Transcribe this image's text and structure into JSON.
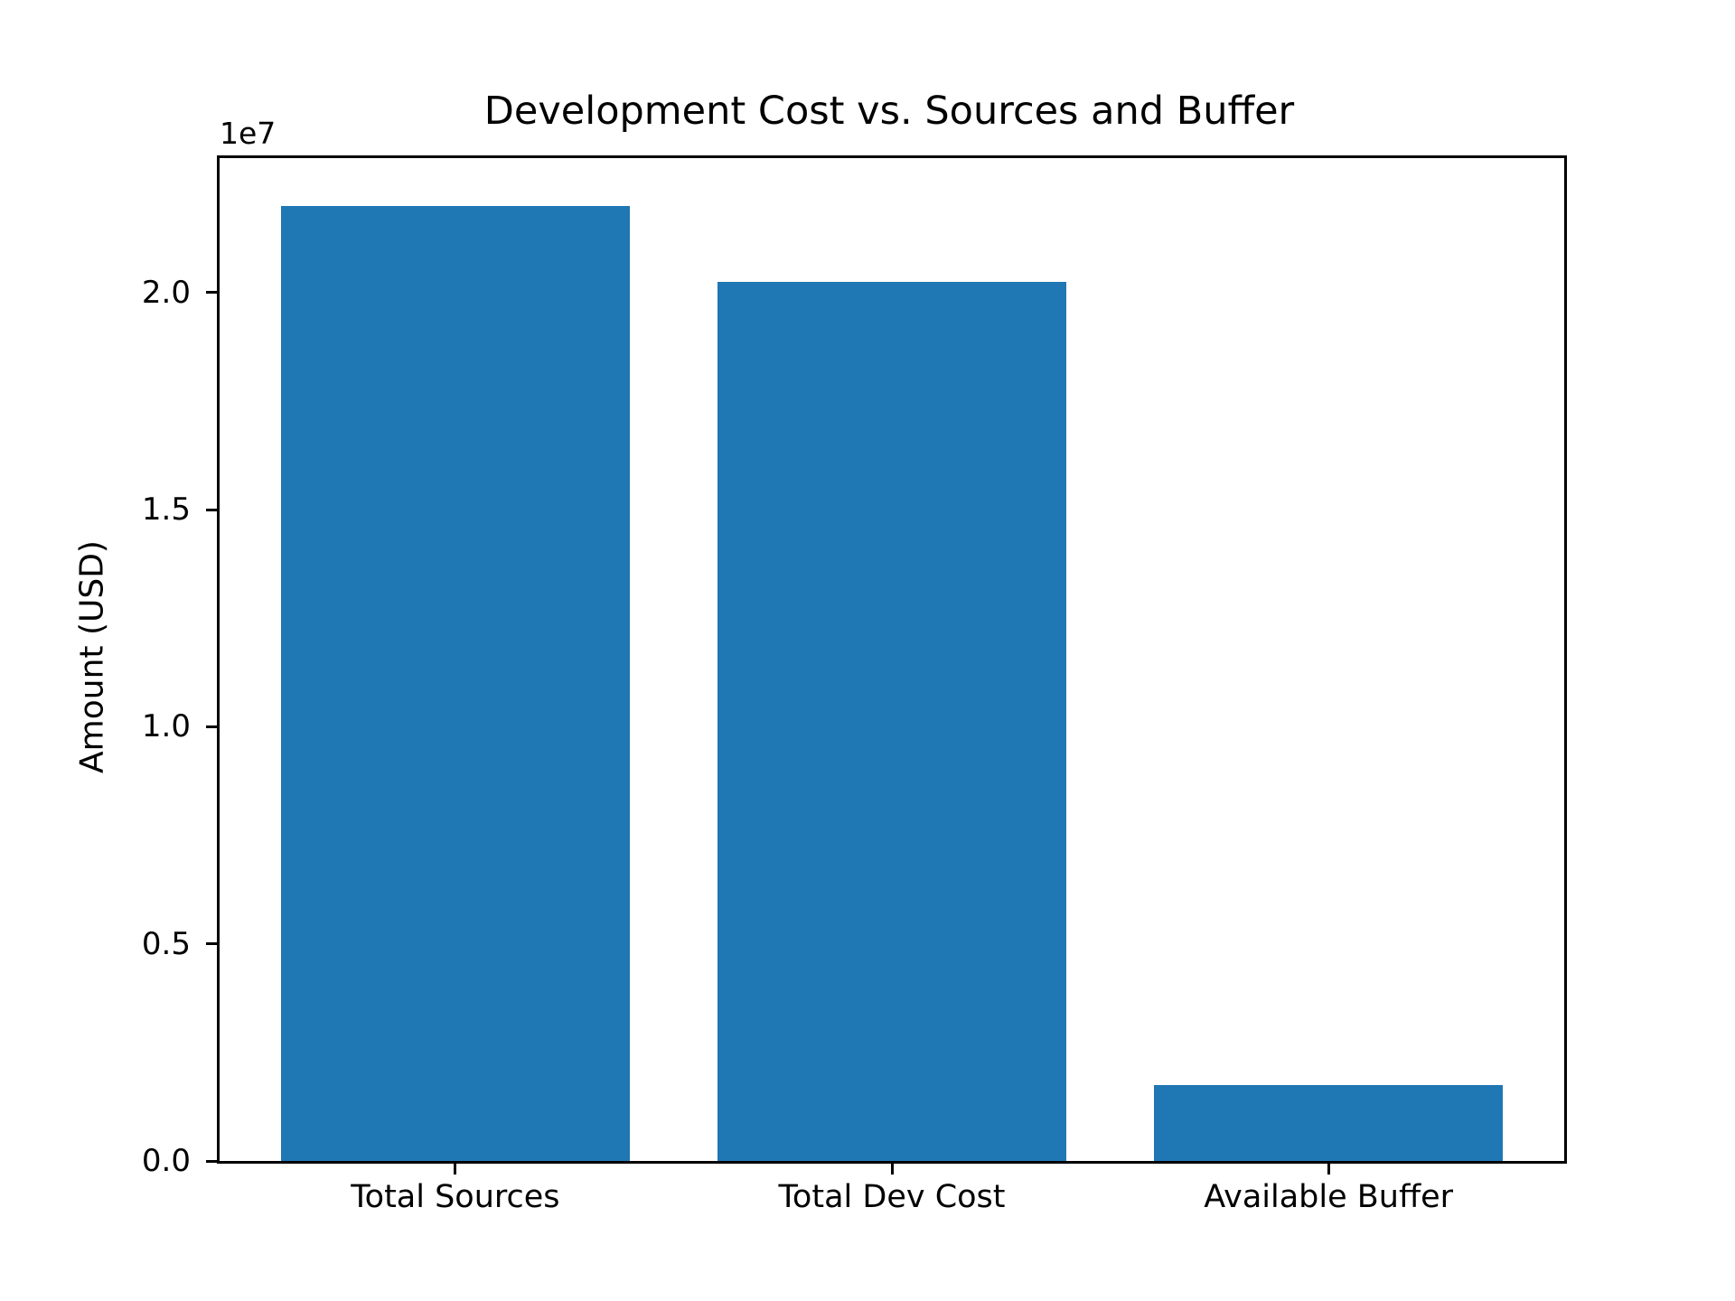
{
  "figure": {
    "title": "Development Cost vs. Sources and Buffer",
    "ylabel": "Amount (USD)",
    "offset_text": "1e7"
  },
  "chart_data": {
    "type": "bar",
    "title": "Development Cost vs. Sources and Buffer",
    "categories": [
      "Total Sources",
      "Total Dev Cost",
      "Available Buffer"
    ],
    "values": [
      22000000,
      20250000,
      1750000
    ],
    "xlabel": "",
    "ylabel": "Amount (USD)",
    "ylim": [
      0,
      23100000
    ],
    "xlim": [
      -0.54,
      2.54
    ],
    "bar_width": 0.8,
    "yticks": {
      "values": [
        0,
        5000000,
        10000000,
        15000000,
        20000000
      ],
      "labels": [
        "0.0",
        "0.5",
        "1.0",
        "1.5",
        "2.0"
      ],
      "offset_label": "1e7"
    },
    "bar_color": "#1f77b4",
    "axes_color": "#000000",
    "background_color": "#ffffff",
    "grid": false,
    "legend": null
  }
}
